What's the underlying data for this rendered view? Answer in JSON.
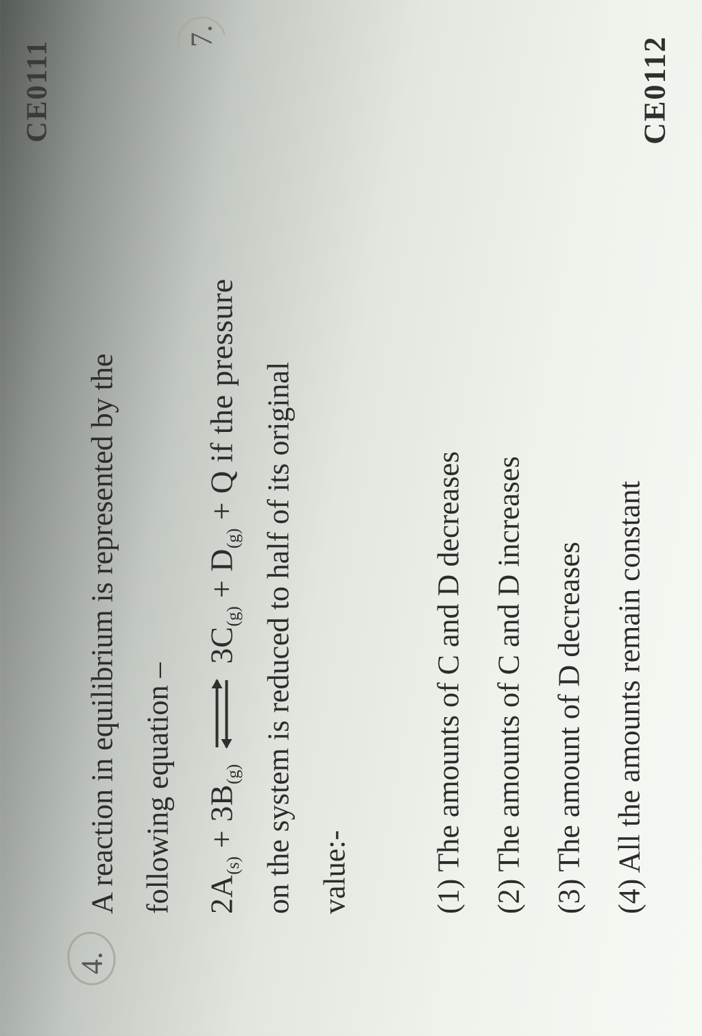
{
  "codes": {
    "top_right": "CE0111",
    "bottom_right": "CE0112"
  },
  "question": {
    "number": "4.",
    "margin_number": "7.",
    "stem_line1": "A reaction in equilibrium is represented by the",
    "stem_line2": "following equation –",
    "equation": {
      "lhs_a_coef": "2A",
      "lhs_a_phase": "(s)",
      "plus1": " + ",
      "lhs_b_coef": "3B",
      "lhs_b_phase": "(g)",
      "rhs_c_coef": "3C",
      "rhs_c_phase": "(g)",
      "plus2": " + ",
      "rhs_d": "D",
      "rhs_d_phase": "(g)",
      "plus3": " + Q if the pressure"
    },
    "stem_line4": "on the system is reduced to half of its original",
    "stem_line5": "value:-",
    "options": {
      "o1": "(1) The amounts of C and D decreases",
      "o2": "(2) The amounts of C and D increases",
      "o3": "(3) The amount of D decreases",
      "o4": "(4) All the amounts remain constant"
    }
  },
  "style": {
    "text_color": "#2c2c2c",
    "circle_color": "#9a9a94",
    "base_fontsize_pt": 33,
    "code_fontsize_pt": 32,
    "font_family": "Georgia, 'Times New Roman', serif"
  }
}
